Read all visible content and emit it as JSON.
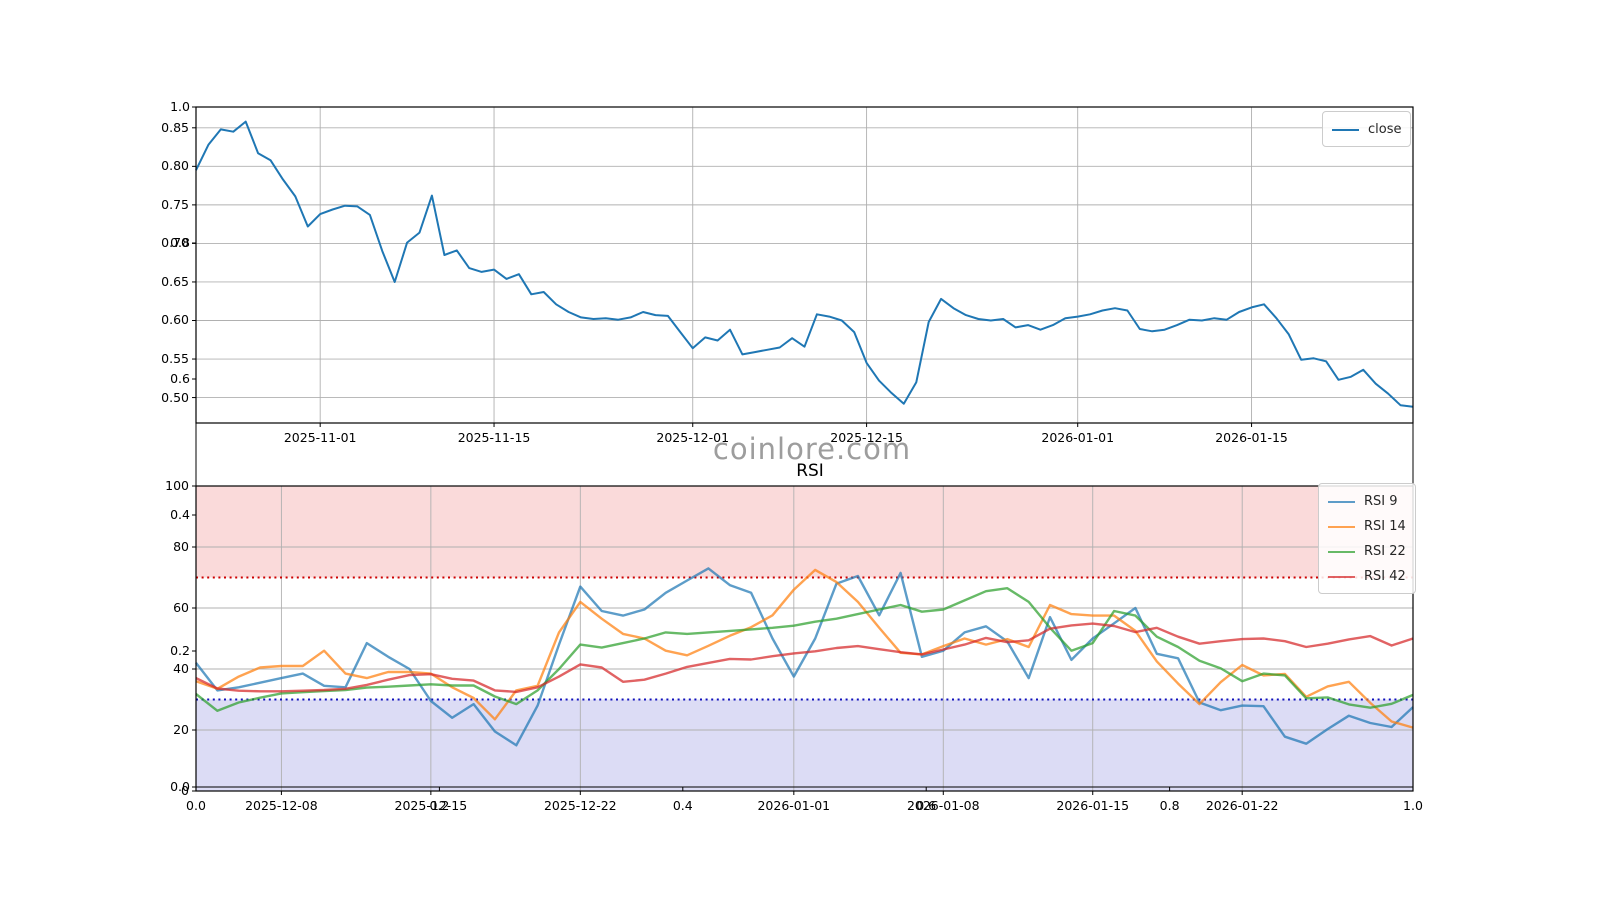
{
  "watermark": {
    "text": "coinlore.com",
    "color": "#8c8c8c"
  },
  "rsi_title": "RSI",
  "overlay_axis": {
    "x_tick_labels": [
      "0.0",
      "0.2",
      "0.4",
      "0.6",
      "0.8",
      "1.0"
    ],
    "y_tick_labels": [
      "1.0",
      "0.8",
      "0.6",
      "0.4",
      "0.2",
      "0.0"
    ]
  },
  "chart_data": [
    {
      "id": "price",
      "type": "line",
      "title": "",
      "xlabel": "",
      "ylabel": "",
      "x_start_date": "2025-10-22",
      "x_end_date": "2026-01-28",
      "x_tick_labels": [
        "2025-11-01",
        "2025-11-15",
        "2025-12-01",
        "2025-12-15",
        "2026-01-01",
        "2026-01-15"
      ],
      "x_tick_indices": [
        10,
        24,
        40,
        54,
        71,
        85
      ],
      "y_ticks": [
        0.5,
        0.55,
        0.6,
        0.65,
        0.7,
        0.75,
        0.8,
        0.85
      ],
      "y_tick_labels": [
        "0.50",
        "0.55",
        "0.60",
        "0.65",
        "0.70",
        "0.75",
        "0.80",
        "0.85"
      ],
      "ylim": [
        0.467,
        0.877
      ],
      "grid": true,
      "legend_position": "upper right",
      "series": [
        {
          "name": "close",
          "color": "#1f77b4",
          "opacity": 1,
          "width": 2,
          "values": [
            0.795,
            0.828,
            0.848,
            0.845,
            0.858,
            0.817,
            0.808,
            0.783,
            0.761,
            0.722,
            0.738,
            0.744,
            0.749,
            0.748,
            0.737,
            0.69,
            0.65,
            0.701,
            0.714,
            0.762,
            0.685,
            0.691,
            0.668,
            0.663,
            0.666,
            0.654,
            0.66,
            0.634,
            0.637,
            0.621,
            0.611,
            0.604,
            0.602,
            0.603,
            0.601,
            0.604,
            0.611,
            0.607,
            0.606,
            0.585,
            0.564,
            0.578,
            0.574,
            0.588,
            0.556,
            0.559,
            0.562,
            0.565,
            0.577,
            0.566,
            0.608,
            0.605,
            0.6,
            0.585,
            0.545,
            0.522,
            0.506,
            0.492,
            0.52,
            0.598,
            0.628,
            0.616,
            0.607,
            0.602,
            0.6,
            0.602,
            0.591,
            0.594,
            0.588,
            0.594,
            0.603,
            0.605,
            0.608,
            0.613,
            0.616,
            0.613,
            0.589,
            0.586,
            0.588,
            0.594,
            0.601,
            0.6,
            0.603,
            0.601,
            0.611,
            0.617,
            0.621,
            0.603,
            0.582,
            0.549,
            0.551,
            0.547,
            0.523,
            0.527,
            0.536,
            0.518,
            0.505,
            0.49,
            0.488
          ]
        }
      ]
    },
    {
      "id": "rsi",
      "type": "line",
      "title": "RSI",
      "xlabel": "",
      "ylabel": "",
      "x_start_date": "2025-12-04",
      "x_end_date": "2026-01-30",
      "x_tick_labels": [
        "2025-12-08",
        "2025-12-15",
        "2025-12-22",
        "2026-01-01",
        "2026-01-08",
        "2026-01-15",
        "2026-01-22"
      ],
      "x_tick_indices": [
        4,
        11,
        18,
        28,
        35,
        42,
        49
      ],
      "y_ticks": [
        0,
        20,
        40,
        60,
        80,
        100
      ],
      "y_tick_labels": [
        "0",
        "20",
        "40",
        "60",
        "80",
        "100"
      ],
      "ylim": [
        0,
        100
      ],
      "grid": true,
      "legend_position": "upper right",
      "bands": [
        {
          "from": 70,
          "to": 100,
          "color": "#fadada",
          "meaning": "overbought"
        },
        {
          "from": 0,
          "to": 30,
          "color": "#dcdcf5",
          "meaning": "oversold"
        }
      ],
      "hlines": [
        {
          "y": 70,
          "color": "#cc0000",
          "style": "dotted"
        },
        {
          "y": 30,
          "color": "#1111bb",
          "style": "dotted"
        }
      ],
      "series": [
        {
          "name": "RSI 9",
          "color": "#1f77b4",
          "opacity": 0.72,
          "width": 2.4,
          "values": [
            42,
            33,
            34,
            35.5,
            37,
            38.5,
            34.5,
            34,
            48.5,
            44,
            40,
            29.5,
            24,
            28.5,
            19.5,
            15,
            28,
            48,
            67,
            59,
            57.5,
            59.5,
            65,
            69,
            73,
            67.5,
            65,
            50,
            37.5,
            50,
            68,
            70.5,
            57.6,
            71.5,
            44,
            46,
            52,
            54,
            49,
            37,
            57,
            43,
            50,
            55,
            60,
            45,
            43.5,
            29,
            26.5,
            28,
            27.8,
            17.8,
            15.5,
            20.3,
            24.7,
            22.3,
            21,
            27.5
          ]
        },
        {
          "name": "RSI 14",
          "color": "#ff7f0e",
          "opacity": 0.72,
          "width": 2.4,
          "values": [
            36,
            33.5,
            37.5,
            40.5,
            41,
            41,
            46,
            38.5,
            37,
            39,
            39,
            38.5,
            34,
            30.5,
            23.5,
            33,
            34.5,
            52,
            62,
            56.5,
            51.5,
            50,
            46,
            44.5,
            47.6,
            50.9,
            53.7,
            57.6,
            66,
            72.5,
            68.5,
            62,
            53.5,
            45.3,
            44.8,
            47.5,
            50,
            48,
            49.8,
            47.2,
            61,
            58,
            57.5,
            57.5,
            52.5,
            42.5,
            35.2,
            28.5,
            35.7,
            41.3,
            37.9,
            38.4,
            30.9,
            34.3,
            35.8,
            28.9,
            22.8,
            20.8
          ]
        },
        {
          "name": "RSI 22",
          "color": "#2ca02c",
          "opacity": 0.72,
          "width": 2.4,
          "values": [
            31.8,
            26.3,
            29,
            30.6,
            32,
            32.4,
            32.8,
            33.1,
            33.9,
            34.2,
            34.6,
            35,
            34.6,
            34.6,
            31,
            28.5,
            33,
            40,
            48,
            47,
            48.5,
            50,
            52,
            51.5,
            52,
            52.5,
            53,
            53.5,
            54.2,
            55.5,
            56.5,
            58,
            59.5,
            61,
            58.8,
            59.5,
            62.5,
            65.5,
            66.5,
            62,
            53.5,
            46,
            48.5,
            59,
            57.5,
            50.6,
            47.2,
            42.7,
            40.2,
            36,
            38.5,
            37.9,
            30.4,
            30.7,
            28.4,
            27.3,
            28.6,
            31.5
          ]
        },
        {
          "name": "RSI 42",
          "color": "#d62728",
          "opacity": 0.72,
          "width": 2.4,
          "values": [
            37,
            33.6,
            32.9,
            32.7,
            32.7,
            32.9,
            33.1,
            33.5,
            34.8,
            36.5,
            38,
            38.3,
            36.8,
            36.2,
            33,
            32.5,
            34,
            37.5,
            41.5,
            40.5,
            35.8,
            36.5,
            38.5,
            40.7,
            42,
            43.3,
            43.1,
            44.2,
            45.1,
            45.8,
            46.9,
            47.5,
            46.5,
            45.5,
            44.8,
            46.4,
            48,
            50.2,
            48.8,
            49.4,
            53.2,
            54.3,
            54.9,
            54.1,
            52.1,
            53.5,
            50.6,
            48.3,
            49.1,
            49.8,
            50,
            49.1,
            47.2,
            48.3,
            49.7,
            50.8,
            47.7,
            50
          ]
        }
      ]
    }
  ],
  "style": {
    "gridline_color": "#b0b0b0",
    "spine_color": "#000000",
    "background": "#ffffff"
  }
}
